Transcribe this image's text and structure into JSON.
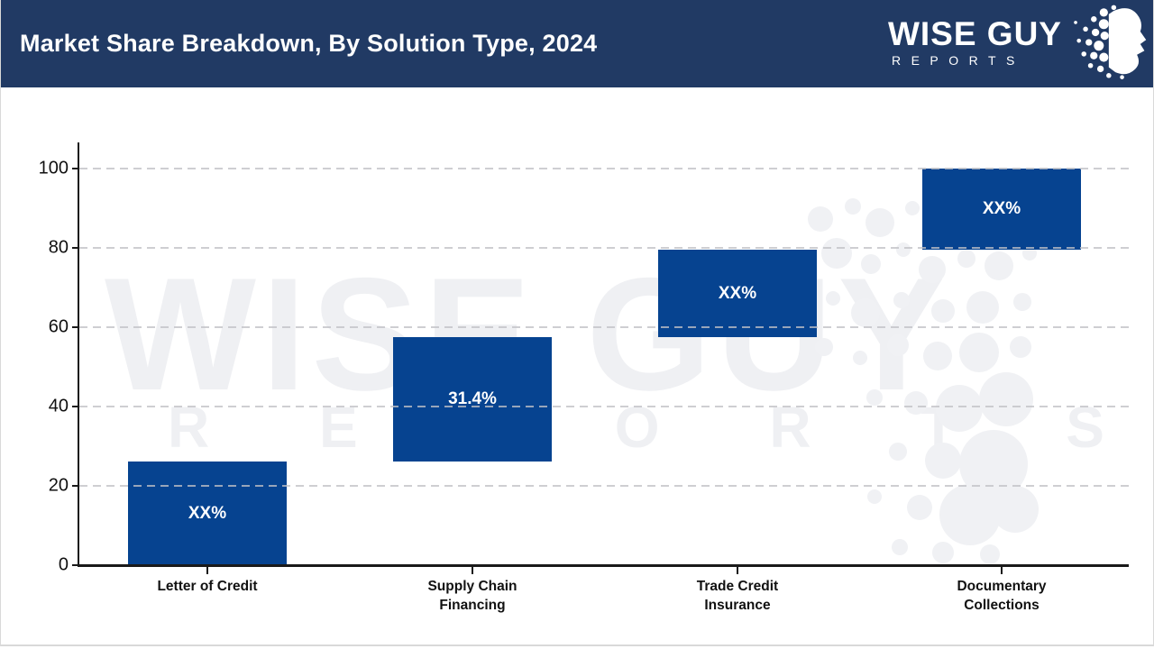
{
  "header": {
    "title": "Market Share Breakdown, By Solution Type, 2024",
    "background_color": "#213a64",
    "logo": {
      "line1": "WISE GUY",
      "line2": "REPORTS"
    }
  },
  "watermark": {
    "line1": "WISE GUY",
    "line2": "REPORTS"
  },
  "chart_data": {
    "type": "bar",
    "subtype": "waterfall-stacked-segments",
    "title": "Market Share Breakdown, By Solution Type, 2024",
    "categories": [
      "Letter of Credit",
      "Supply Chain\nFinancing",
      "Trade Credit\nInsurance",
      "Documentary\nCollections"
    ],
    "segments": [
      {
        "category": "Letter of Credit",
        "start": 0,
        "end": 26.1,
        "label": "XX%"
      },
      {
        "category": "Supply Chain Financing",
        "start": 26.1,
        "end": 57.5,
        "label": "31.4%"
      },
      {
        "category": "Trade Credit Insurance",
        "start": 57.5,
        "end": 79.5,
        "label": "XX%"
      },
      {
        "category": "Documentary Collections",
        "start": 79.5,
        "end": 100,
        "label": "XX%"
      }
    ],
    "yticks": [
      0,
      20,
      40,
      60,
      80,
      100
    ],
    "ylim": [
      0,
      106
    ],
    "xlabel": "",
    "ylabel": "",
    "grid": "horizontal-dashed",
    "legend": "none",
    "bar_color": "#064390",
    "bar_label_color": "#ffffff"
  }
}
